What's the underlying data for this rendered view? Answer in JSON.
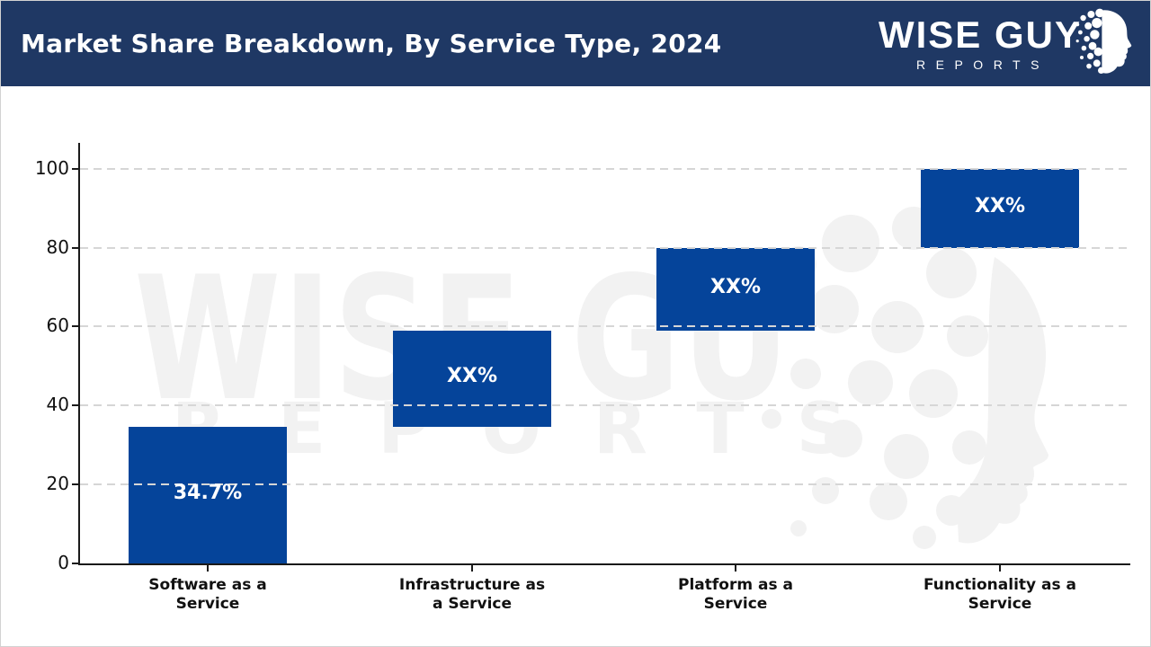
{
  "header": {
    "title": "Market Share Breakdown, By Service Type, 2024",
    "bg_color": "#1f3864",
    "logo": {
      "wordmark": "WISE GUY",
      "subtext": "REPORTS"
    }
  },
  "watermark": {
    "line1": "WISE GU",
    "line2": "REPORTS"
  },
  "chart_data": {
    "type": "bar",
    "variant": "waterfall",
    "title": "Market Share Breakdown, By Service Type, 2024",
    "categories": [
      "Software as a Service",
      "Infrastructure as a Service",
      "Platform as a Service",
      "Functionality as a Service"
    ],
    "category_lines": [
      [
        "Software as a",
        "Service"
      ],
      [
        "Infrastructure as",
        "a Service"
      ],
      [
        "Platform as a",
        "Service"
      ],
      [
        "Functionality as a",
        "Service"
      ]
    ],
    "segments": [
      {
        "category": "Software as a Service",
        "start": 0,
        "end": 34.7,
        "label": "34.7%"
      },
      {
        "category": "Infrastructure as a Service",
        "start": 34.7,
        "end": 59,
        "label": "XX%"
      },
      {
        "category": "Platform as a Service",
        "start": 59,
        "end": 80,
        "label": "XX%"
      },
      {
        "category": "Functionality as a Service",
        "start": 80,
        "end": 100,
        "label": "XX%"
      }
    ],
    "yticks": [
      0,
      20,
      40,
      60,
      80,
      100
    ],
    "ylim": [
      0,
      106
    ],
    "xlabel": "",
    "ylabel": "",
    "legend": null,
    "grid": {
      "axis": "y",
      "style": "dashed"
    },
    "colors": {
      "bar": "#05449a",
      "axis": "#1a1a1a",
      "gridline": "#d6d6d6",
      "bar_label": "#ffffff",
      "header": "#1f3864",
      "watermark": "#f2f2f2"
    }
  }
}
